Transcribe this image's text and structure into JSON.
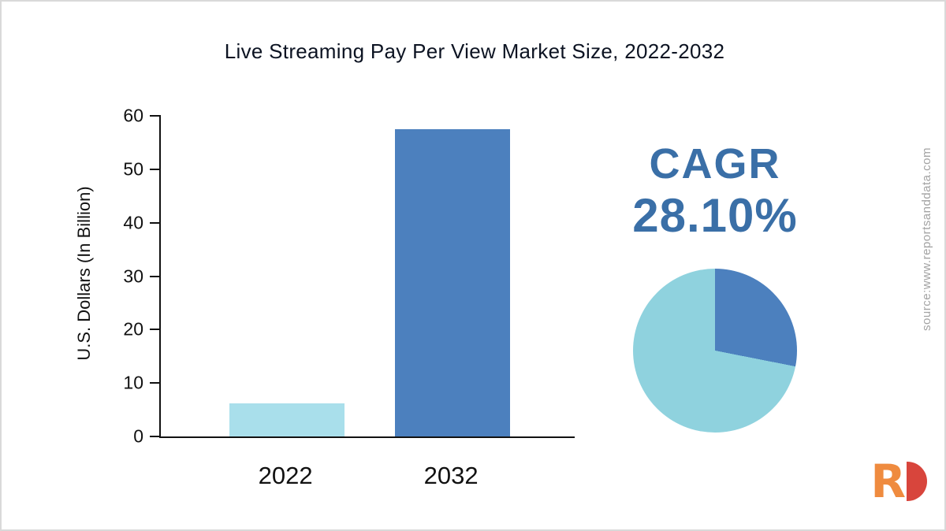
{
  "chart_data": [
    {
      "type": "bar",
      "title": "Live Streaming Pay Per View Market Size, 2022-2032",
      "categories": [
        "2022",
        "2032"
      ],
      "values": [
        6.2,
        57.5
      ],
      "ylabel": "U.S. Dollars (In Billion)",
      "xlabel": "",
      "ylim": [
        0,
        60
      ],
      "yticks": [
        0,
        10,
        20,
        30,
        40,
        50,
        60
      ],
      "bar_colors": [
        "#a9dfeb",
        "#4c80be"
      ],
      "grid": false,
      "legend_position": "none"
    },
    {
      "type": "pie",
      "values": [
        28.1,
        71.9
      ],
      "colors": [
        "#4c80be",
        "#8fd2de"
      ],
      "start_angle": "top-clockwise",
      "legend_position": "none"
    }
  ],
  "annotations": {
    "cagr_label": "CAGR",
    "cagr_value": "28.10%",
    "cagr_color": "#3a6fa7"
  },
  "source_note": "source:www.reportsanddata.com",
  "logo_text": "R"
}
